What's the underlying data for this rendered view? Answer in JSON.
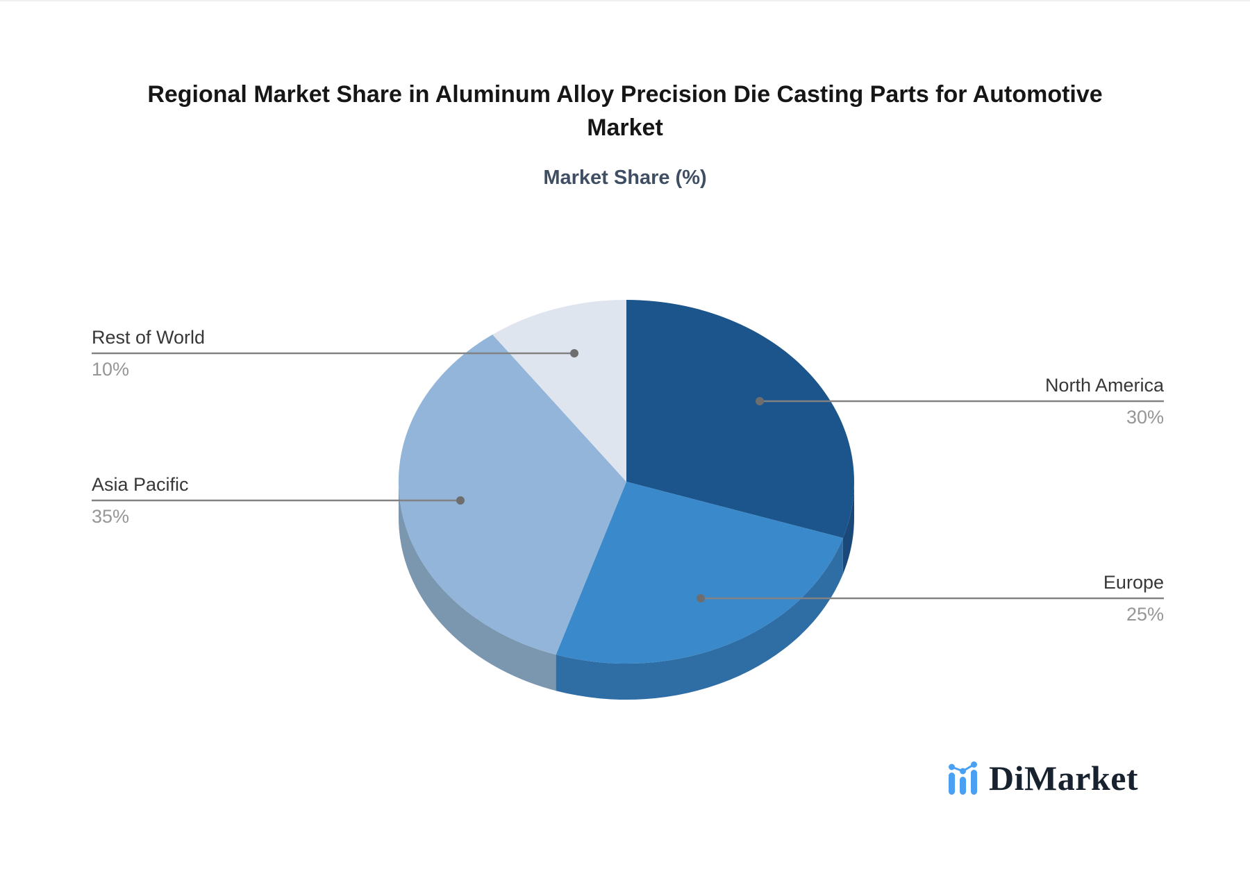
{
  "title_lines": [
    "Regional Market Share in Aluminum Alloy Precision Die Casting Parts for Automotive",
    "Market"
  ],
  "subtitle": "Market Share (%)",
  "brand": {
    "name": "DiMarket",
    "icon": "bar-chart-logo-icon",
    "icon_color": "#4AA0F2",
    "text_color": "#18222E"
  },
  "colors": {
    "leader_line": "#828282",
    "leader_dot": "#6E6E6E",
    "label_text": "#373737",
    "percent_text": "#969696",
    "subtitle_text": "#3F4E63"
  },
  "chart_data": {
    "type": "pie",
    "title": "Regional Market Share in Aluminum Alloy Precision Die Casting Parts for Automotive Market",
    "subtitle": "Market Share (%)",
    "unit": "%",
    "effect": "3d",
    "start_angle_deg": -90,
    "direction": "clockwise",
    "labels_position": "outside-leader-lines",
    "legend": "none",
    "slices": [
      {
        "label": "North America",
        "value": 30,
        "display": "30%",
        "color": "#1B558C",
        "side_color": "#1A4979"
      },
      {
        "label": "Europe",
        "value": 25,
        "display": "25%",
        "color": "#3A89CB",
        "side_color": "#2F6DA5"
      },
      {
        "label": "Asia Pacific",
        "value": 35,
        "display": "35%",
        "color": "#92B5D9",
        "side_color": "#7B96AF"
      },
      {
        "label": "Rest of World",
        "value": 10,
        "display": "10%",
        "color": "#DFE5EF",
        "side_color": "#B4BDCC"
      }
    ]
  }
}
